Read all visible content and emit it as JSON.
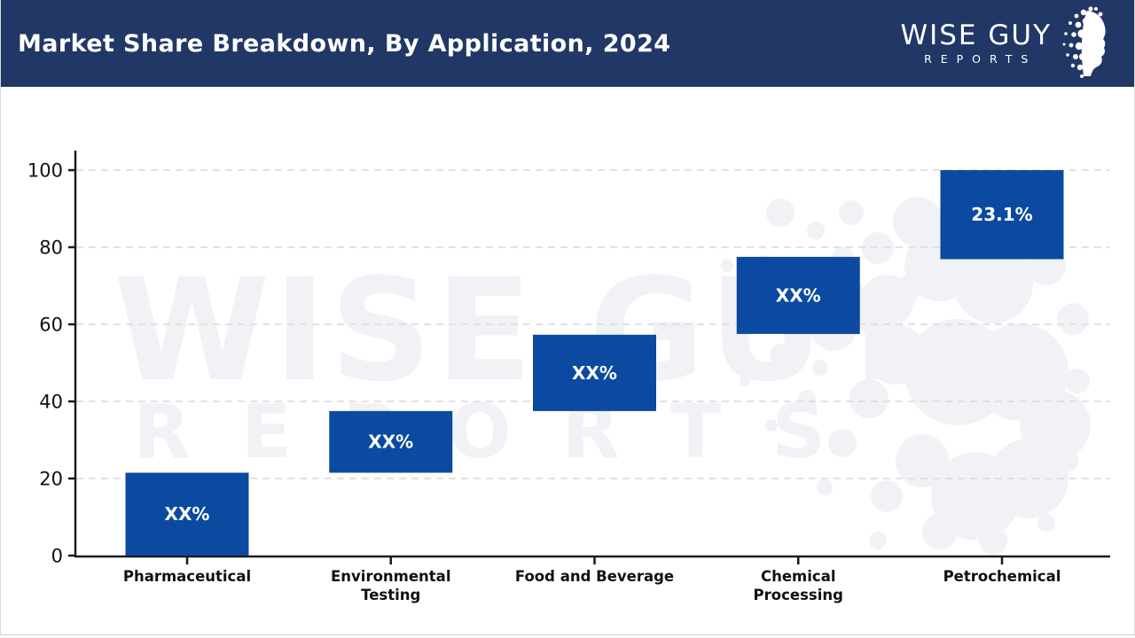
{
  "header": {
    "title": "Market Share Breakdown, By Application, 2024",
    "logo": {
      "line1": "WISE GUY",
      "line2": "REPORTS"
    }
  },
  "watermark": {
    "line1": "WISE GUY",
    "line2": "R E P O R T S"
  },
  "chart_data": {
    "type": "bar",
    "subtype": "waterfall-floating-bars",
    "title": "Market Share Breakdown, By Application, 2024",
    "categories": [
      "Pharmaceutical",
      "Environmental Testing",
      "Food and Beverage",
      "Chemical Processing",
      "Petrochemical"
    ],
    "category_label_lines": [
      [
        "Pharmaceutical"
      ],
      [
        "Environmental",
        "Testing"
      ],
      [
        "Food and Beverage"
      ],
      [
        "Chemical",
        "Processing"
      ],
      [
        "Petrochemical"
      ]
    ],
    "segments": [
      {
        "category": "Pharmaceutical",
        "start": 0,
        "end": 21.5,
        "label": "XX%"
      },
      {
        "category": "Environmental Testing",
        "start": 21.5,
        "end": 37.5,
        "label": "XX%"
      },
      {
        "category": "Food and Beverage",
        "start": 37.5,
        "end": 57.3,
        "label": "XX%"
      },
      {
        "category": "Chemical Processing",
        "start": 57.5,
        "end": 77.5,
        "label": "XX%"
      },
      {
        "category": "Petrochemical",
        "start": 76.9,
        "end": 100,
        "label": "23.1%"
      }
    ],
    "xlabel": "",
    "ylabel": "",
    "ylim": [
      0,
      100
    ],
    "yticks": [
      0,
      20,
      40,
      60,
      80,
      100
    ],
    "grid": "horizontal-dashed",
    "legend": "none"
  },
  "colors": {
    "header_bg": "#213765",
    "bar_fill": "#0b4aa0",
    "bar_label": "#ffffff",
    "axis": "#1a1a1a",
    "tick_label": "#111111",
    "gridline": "#d9d9d9",
    "watermark": "#f1f2f5",
    "title_text": "#ffffff"
  }
}
